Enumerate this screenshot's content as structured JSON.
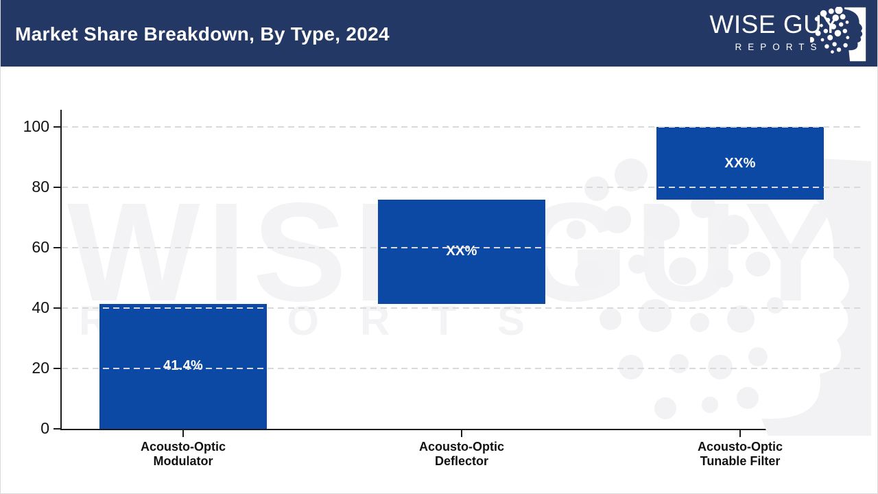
{
  "header": {
    "title": "Market Share Breakdown, By Type, 2024",
    "background_color": "#233864",
    "logo": {
      "line1": "WISE GUY",
      "line2": "REPORTS",
      "face_icon": "dotted-face-profile"
    }
  },
  "watermark": {
    "line1": "WISE GUY",
    "line2": "REPORTS",
    "color": "#f3f3f5"
  },
  "chart_data": {
    "type": "bar",
    "subtype": "stacked-waterfall",
    "title": "Market Share Breakdown, By Type, 2024",
    "xlabel": "",
    "ylabel": "",
    "ylim": [
      0,
      100
    ],
    "yticks": [
      0,
      20,
      40,
      60,
      80,
      100
    ],
    "grid": "horizontal dashed",
    "bar_color": "#0b49a4",
    "bar_label_color": "#ffffff",
    "categories": [
      "Acousto-Optic\nModulator",
      "Acousto-Optic\nDeflector",
      "Acousto-Optic\nTunable Filter"
    ],
    "segments": [
      {
        "category": "Acousto-Optic\nModulator",
        "start": 0,
        "end": 41.4,
        "label": "41.4%"
      },
      {
        "category": "Acousto-Optic\nDeflector",
        "start": 41.4,
        "end": 75.9,
        "label": "XX%"
      },
      {
        "category": "Acousto-Optic\nTunable Filter",
        "start": 75.9,
        "end": 100,
        "label": "XX%"
      }
    ]
  }
}
